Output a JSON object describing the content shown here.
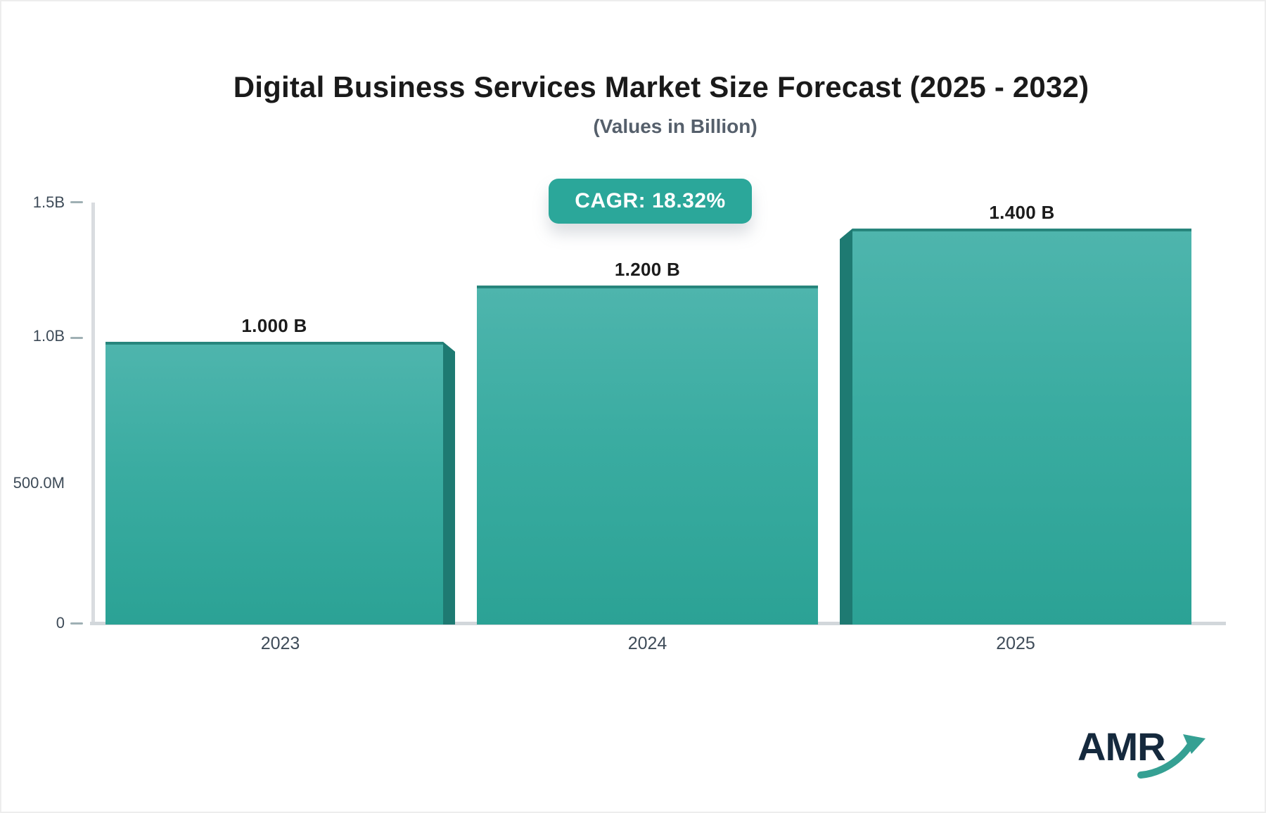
{
  "header": {
    "title": "Digital Business Services Market Size Forecast (2025 - 2032)",
    "subtitle": "(Values in Billion)"
  },
  "badge": {
    "label": "CAGR: 18.32%",
    "color": "#2ba79a"
  },
  "y_axis": {
    "labels": [
      "1.5B",
      "1.0B",
      "500.0M",
      "0"
    ]
  },
  "bars": [
    {
      "year": "2023",
      "value_label": "1.000 B"
    },
    {
      "year": "2024",
      "value_label": "1.200 B"
    },
    {
      "year": "2025",
      "value_label": "1.400 B"
    }
  ],
  "logo": {
    "text": "AMR"
  },
  "colors": {
    "bar_top": "#4eb5ad",
    "bar_bottom": "#2ba295",
    "bar_side_3d": "#1e7a72",
    "bar_top_edge": "#27857c",
    "badge_bg": "#2ba79a",
    "axis_line": "#d9dce0",
    "tick_label": "#3e4b58",
    "logo_navy": "#15293d",
    "logo_arrow_teal": "#35a093"
  },
  "chart_data": {
    "type": "bar",
    "title": "Digital Business Services Market Size Forecast (2025 - 2032)",
    "subtitle": "(Values in Billion)",
    "categories": [
      "2023",
      "2024",
      "2025"
    ],
    "values": [
      1.0,
      1.2,
      1.4
    ],
    "unit": "Billion",
    "value_labels": [
      "1.000 B",
      "1.200 B",
      "1.400 B"
    ],
    "annotation": "CAGR: 18.32%",
    "xlabel": "",
    "ylabel": "",
    "ylim": [
      0,
      1.5
    ],
    "ytick_labels": [
      "0",
      "500.0M",
      "1.0B",
      "1.5B"
    ],
    "grid": false,
    "legend_position": "none"
  }
}
